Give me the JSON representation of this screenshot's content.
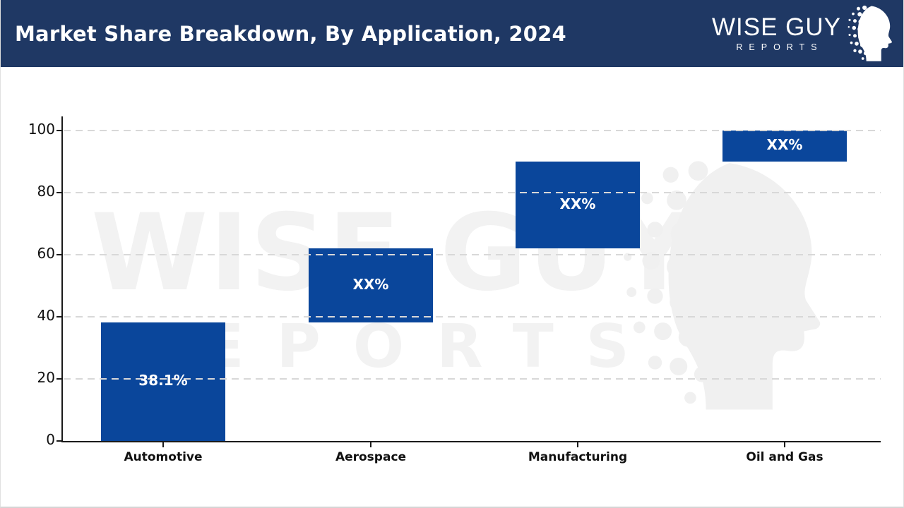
{
  "header": {
    "title": "Market Share Breakdown, By Application, 2024",
    "brand": {
      "line1": "WISE GUY",
      "line2": "REPORTS"
    }
  },
  "watermark": {
    "line1": "WISE GUY",
    "line2": "REPORTS"
  },
  "chart_data": {
    "type": "bar",
    "subtype": "waterfall",
    "title": "Market Share Breakdown, By Application, 2024",
    "categories": [
      "Automotive",
      "Aerospace",
      "Manufacturing",
      "Oil and Gas"
    ],
    "segments": [
      {
        "category": "Automotive",
        "start": 0,
        "end": 38.1,
        "span": 38.1,
        "label": "38.1%"
      },
      {
        "category": "Aerospace",
        "start": 38.1,
        "end": 62,
        "span": 23.9,
        "label": "XX%"
      },
      {
        "category": "Manufacturing",
        "start": 62,
        "end": 90,
        "span": 28,
        "label": "XX%"
      },
      {
        "category": "Oil and Gas",
        "start": 90,
        "end": 100,
        "span": 10,
        "label": "XX%"
      }
    ],
    "ylim": [
      0,
      100
    ],
    "yticks": [
      0,
      20,
      40,
      60,
      80,
      100
    ],
    "xlabel": "",
    "ylabel": "",
    "grid": "dashed horizontal gridlines drawn over bars",
    "legend": "none",
    "bar_color": "#0a469b",
    "value_label_color": "#ffffff"
  },
  "colors": {
    "header_bg": "#1f3864",
    "bar_blue": "#0a469b",
    "axis": "#1a1a1a",
    "gridline": "#d8d8d8",
    "watermark": "#f2f2f2",
    "plot_bg": "#ffffff"
  }
}
